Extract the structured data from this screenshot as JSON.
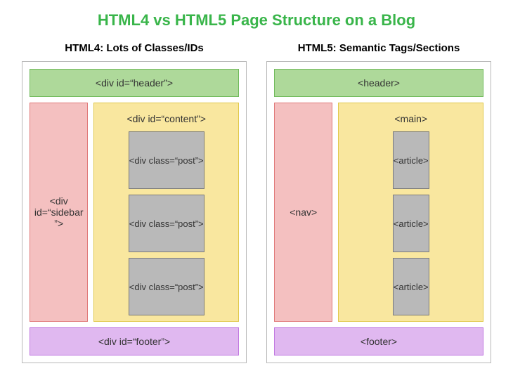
{
  "title": {
    "text": "HTML4 vs HTML5 Page Structure on a Blog",
    "color": "#39b54a",
    "fontsize": 22
  },
  "colors": {
    "panel_border": "#b8b8b8",
    "panel_bg": "#ffffff",
    "green_fill": "#aed99a",
    "green_border": "#6fb95a",
    "pink_fill": "#f4c0c0",
    "pink_border": "#e07878",
    "yellow_fill": "#f9e79f",
    "yellow_border": "#e0c84a",
    "gray_fill": "#b9b9b9",
    "gray_border": "#7a7a7a",
    "violet_fill": "#e0b8f0",
    "violet_border": "#c078e0",
    "label_text": "#333333"
  },
  "left": {
    "title": "HTML4: Lots of Classes/IDs",
    "header": "<div id=“header”>",
    "sidebar": "<div id=“sidebar”>",
    "content_label": "<div id=“content”>",
    "posts": [
      "<div class=“post”>",
      "<div class=“post”>",
      "<div class=“post”>"
    ],
    "footer": "<div id=“footer”>"
  },
  "right": {
    "title": "HTML5: Semantic Tags/Sections",
    "header": "<header>",
    "sidebar": "<nav>",
    "content_label": "<main>",
    "posts": [
      "<article>",
      "<article>",
      "<article>"
    ],
    "footer": "<footer>"
  }
}
